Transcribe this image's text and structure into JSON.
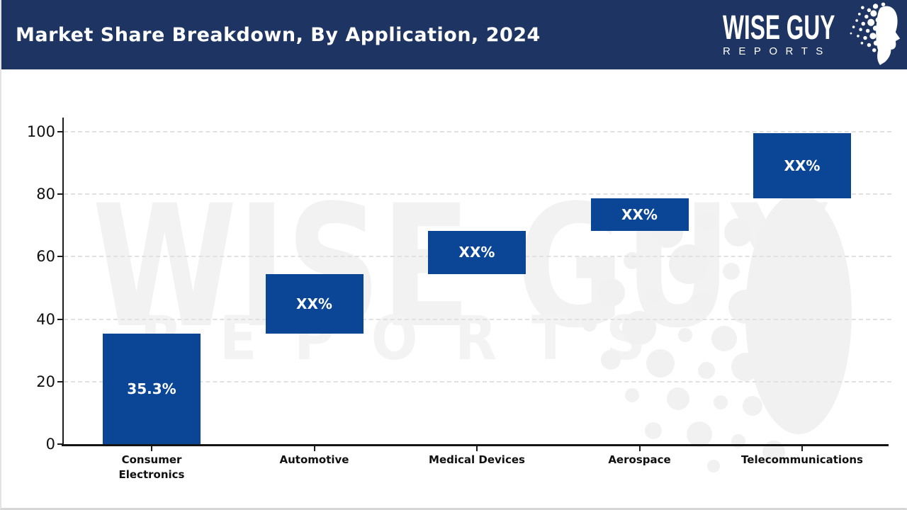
{
  "header": {
    "title": "Market Share Breakdown, By Application, 2024",
    "logo": {
      "wordmark": "WISE GUY",
      "sub": "REPORTS"
    }
  },
  "watermark": {
    "line1": "WISE GUY",
    "line2": "REPORTS"
  },
  "colors": {
    "header_bg": "#1e3563",
    "bar": "#0b4596",
    "bar_label_text": "#ffffff",
    "grid": "#e1e1e1",
    "axis": "#1c1c1c",
    "watermark": "#f2f2f2"
  },
  "chart_data": {
    "type": "bar",
    "subtype": "waterfall",
    "title": "Market Share Breakdown, By Application, 2024",
    "xlabel": "",
    "ylabel": "",
    "ylim": [
      0,
      103.5
    ],
    "yticks": [
      0,
      20,
      40,
      60,
      80,
      100
    ],
    "grid": "horizontal-dashed",
    "legend": "none",
    "categories": [
      "Consumer Electronics",
      "Automotive",
      "Medical Devices",
      "Aerospace",
      "Telecommunications"
    ],
    "bars": [
      {
        "category": "Consumer Electronics",
        "tick_lines": [
          "Consumer",
          "Electronics"
        ],
        "start": 0,
        "end": 35.3,
        "label": "35.3%"
      },
      {
        "category": "Automotive",
        "tick_lines": [
          "Automotive"
        ],
        "start": 35.3,
        "end": 54.5,
        "label": "XX%"
      },
      {
        "category": "Medical Devices",
        "tick_lines": [
          "Medical Devices"
        ],
        "start": 54.5,
        "end": 68.2,
        "label": "XX%"
      },
      {
        "category": "Aerospace",
        "tick_lines": [
          "Aerospace"
        ],
        "start": 68.2,
        "end": 78.6,
        "label": "XX%"
      },
      {
        "category": "Telecommunications",
        "tick_lines": [
          "Telecommunications"
        ],
        "start": 78.6,
        "end": 99.5,
        "label": "XX%"
      }
    ]
  }
}
